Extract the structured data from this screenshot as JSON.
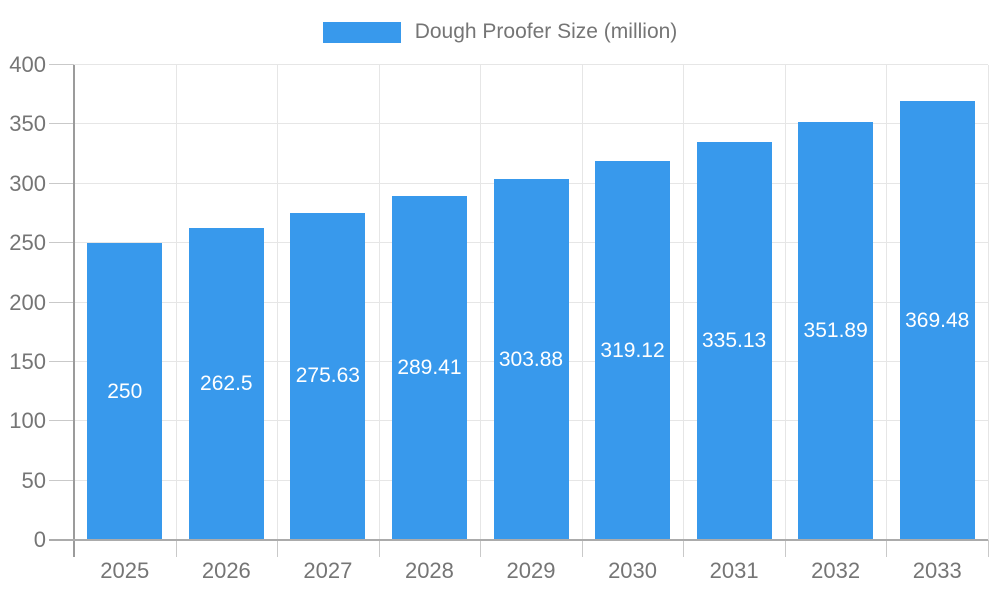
{
  "chart_data": {
    "type": "bar",
    "title": "",
    "legend": {
      "label": "Dough Proofer Size (million)",
      "position": "top"
    },
    "categories": [
      "2025",
      "2026",
      "2027",
      "2028",
      "2029",
      "2030",
      "2031",
      "2032",
      "2033"
    ],
    "series": [
      {
        "name": "Dough Proofer Size (million)",
        "values": [
          250,
          262.5,
          275.63,
          289.41,
          303.88,
          319.12,
          335.13,
          351.89,
          369.48
        ]
      }
    ],
    "value_labels": [
      "250",
      "262.5",
      "275.63",
      "289.41",
      "303.88",
      "319.12",
      "335.13",
      "351.89",
      "369.48"
    ],
    "xlabel": "",
    "ylabel": "",
    "ylim": [
      0,
      400
    ],
    "ytick_labels": [
      "0",
      "50",
      "100",
      "150",
      "200",
      "250",
      "300",
      "350",
      "400"
    ],
    "grid": "on",
    "colors": {
      "bar": "#3899EC",
      "grid": "#e6e6e6",
      "y_axis_line": "#9b9b9b",
      "x_axis_line": "#ababab",
      "tick": "#c9c9c9",
      "axis_text": "#757575",
      "value_label_text": "#ffffff"
    }
  }
}
